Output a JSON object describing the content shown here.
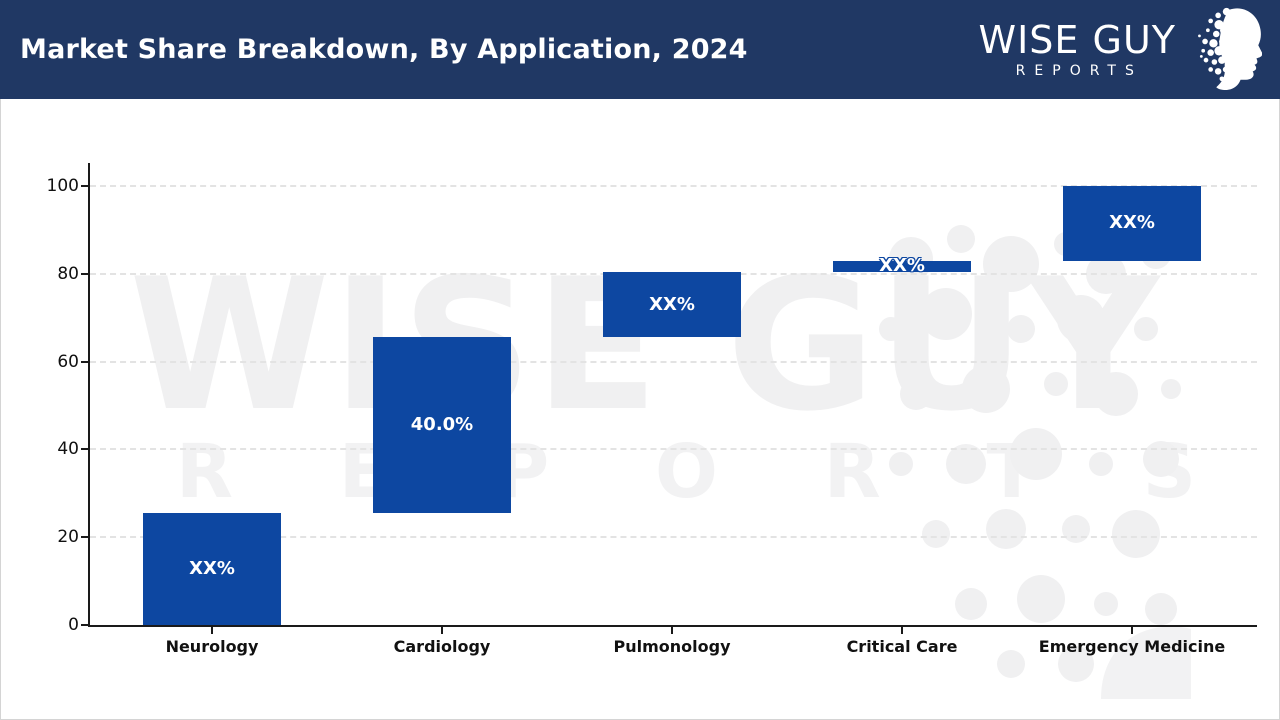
{
  "header": {
    "title": "Market Share Breakdown, By Application, 2024",
    "bg_color": "#203864",
    "logo_line1": "WISE GUY",
    "logo_line2": "REPORTS"
  },
  "watermark": {
    "line1": "WISE GUY",
    "line2": "R E P O R T S"
  },
  "chart_data": {
    "type": "bar",
    "subtype": "waterfall",
    "title": "Market Share Breakdown, By Application, 2024",
    "xlabel": "",
    "ylabel": "",
    "categories": [
      "Neurology",
      "Cardiology",
      "Pulmonology",
      "Critical Care",
      "Emergency Medicine"
    ],
    "segments": [
      {
        "category": "Neurology",
        "start": 0,
        "end": 25.5,
        "value": 25.5,
        "label": "XX%"
      },
      {
        "category": "Cardiology",
        "start": 25.5,
        "end": 65.5,
        "value": 40.0,
        "label": "40.0%"
      },
      {
        "category": "Pulmonology",
        "start": 65.5,
        "end": 80.5,
        "value": 15.0,
        "label": "XX%"
      },
      {
        "category": "Critical Care",
        "start": 80.5,
        "end": 83.0,
        "value": 2.5,
        "label": "XX%"
      },
      {
        "category": "Emergency Medicine",
        "start": 83.0,
        "end": 100.0,
        "value": 17.0,
        "label": "XX%"
      }
    ],
    "yticks": [
      0,
      20,
      40,
      60,
      80,
      100
    ],
    "ytick_labels": [
      "0",
      "20",
      "40",
      "60",
      "80",
      "100"
    ],
    "ylim": [
      0,
      105
    ],
    "grid": "horizontal-dashed",
    "legend": "none",
    "bar_color": "#0d47a1",
    "bar_label_color": "#ffffff",
    "axis_color": "#1a1a1a"
  }
}
